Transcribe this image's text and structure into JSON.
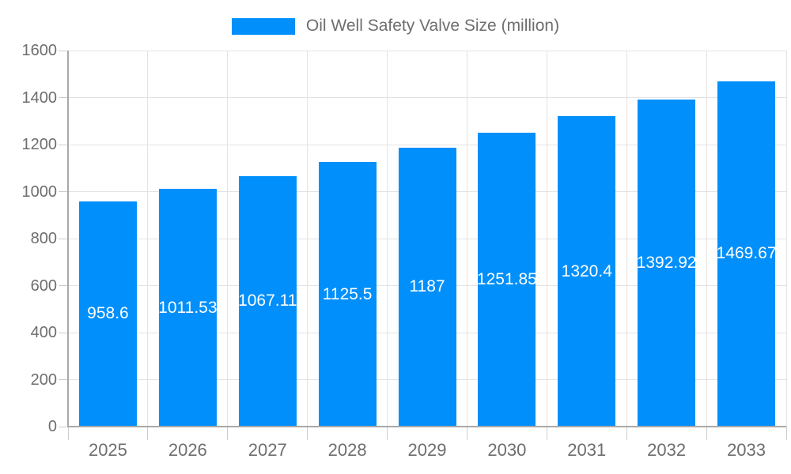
{
  "chart_data": {
    "type": "bar",
    "title": "Oil Well Safety Valve Size (million)",
    "legend_position": "top",
    "xlabel": "",
    "ylabel": "",
    "categories": [
      "2025",
      "2026",
      "2027",
      "2028",
      "2029",
      "2030",
      "2031",
      "2032",
      "2033"
    ],
    "values": [
      958.6,
      1011.53,
      1067.11,
      1125.5,
      1187,
      1251.85,
      1320.4,
      1392.92,
      1469.67
    ],
    "bar_labels": [
      "958.6",
      "1011.53",
      "1067.11",
      "1125.5",
      "1187",
      "1251.85",
      "1320.4",
      "1392.92",
      "1469.67"
    ],
    "ylim": [
      0,
      1600
    ],
    "yticks": [
      0,
      200,
      400,
      600,
      800,
      1000,
      1200,
      1400,
      1600
    ],
    "grid": true,
    "colors": {
      "bar": "#008FFB",
      "gridline": "#e3e3e3",
      "axis_line": "#a9a9a9",
      "tick": "#cccccc",
      "axis_text": "#6e6e6e",
      "legend_text": "#6e6e6e",
      "data_label": "#ffffff",
      "background": "#ffffff"
    }
  }
}
